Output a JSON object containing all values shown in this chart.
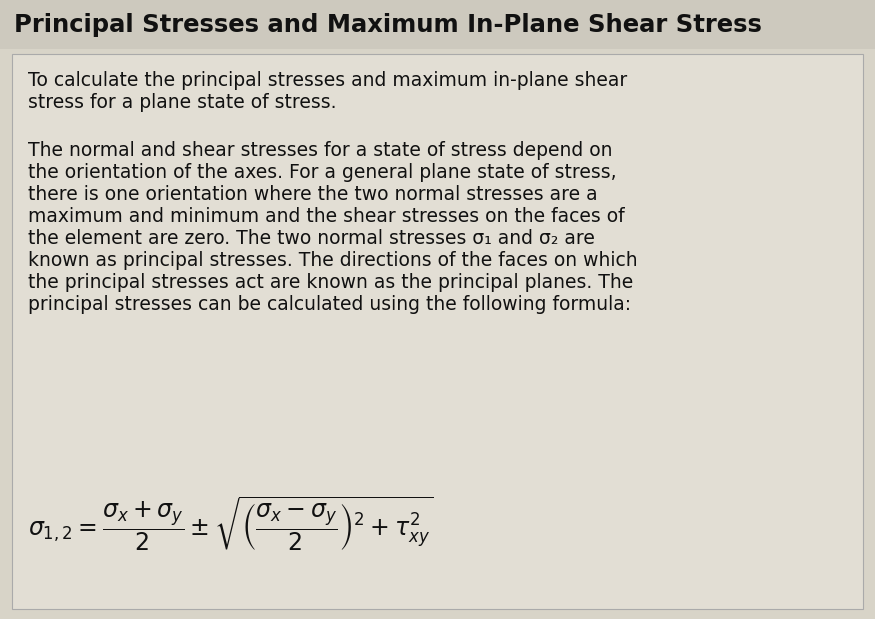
{
  "title": "Principal Stresses and Maximum In-Plane Shear Stress",
  "title_fontsize": 17.5,
  "title_fontweight": "bold",
  "title_color": "#111111",
  "background_color": "#d8d4c8",
  "box_color": "#e2ded4",
  "box_border_color": "#aaaaaa",
  "text_color": "#111111",
  "paragraph1_line1": "To calculate the principal stresses and maximum in-plane shear",
  "paragraph1_line2": "stress for a plane state of stress.",
  "paragraph2_lines": [
    "The normal and shear stresses for a state of stress depend on",
    "the orientation of the axes. For a general plane state of stress,",
    "there is one orientation where the two normal stresses are a",
    "maximum and minimum and the shear stresses on the faces of",
    "the element are zero. The two normal stresses σ₁ and σ₂ are",
    "known as principal stresses. The directions of the faces on which",
    "the principal stresses act are known as the principal planes. The",
    "principal stresses can be calculated using the following formula:"
  ],
  "formula": "$\\sigma_{1,2} = \\dfrac{\\sigma_x + \\sigma_y}{2} \\pm \\sqrt{\\left(\\dfrac{\\sigma_x - \\sigma_y}{2}\\right)^2 + \\tau^2_{xy}}$",
  "body_fontsize": 13.5,
  "formula_fontsize": 17
}
